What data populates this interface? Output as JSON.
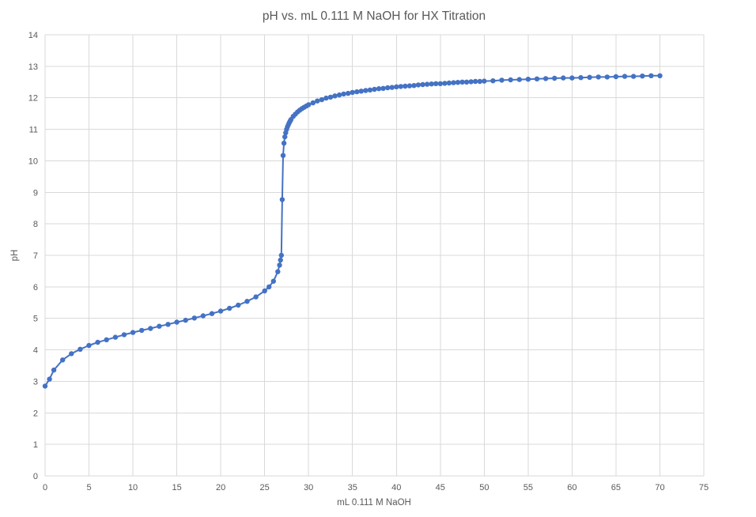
{
  "chart_data": {
    "type": "scatter",
    "title": "pH vs. mL 0.111 M NaOH for HX Titration",
    "xlabel": "mL 0.111 M NaOH",
    "ylabel": "pH",
    "xlim": [
      0,
      75
    ],
    "ylim": [
      0,
      14
    ],
    "x_ticks": [
      0,
      5,
      10,
      15,
      20,
      25,
      30,
      35,
      40,
      45,
      50,
      55,
      60,
      65,
      70,
      75
    ],
    "y_ticks": [
      0,
      1,
      2,
      3,
      4,
      5,
      6,
      7,
      8,
      9,
      10,
      11,
      12,
      13,
      14
    ],
    "grid": true,
    "legend": "none",
    "colors": {
      "series": "#4472C4",
      "gridline": "#D9D9D9",
      "text": "#595959",
      "background": "#FFFFFF"
    },
    "series": [
      {
        "name": "pH",
        "marker": "circle",
        "points": [
          [
            0,
            2.85
          ],
          [
            0.5,
            3.07
          ],
          [
            1,
            3.36
          ],
          [
            2,
            3.68
          ],
          [
            3,
            3.88
          ],
          [
            4,
            4.02
          ],
          [
            5,
            4.14
          ],
          [
            6,
            4.24
          ],
          [
            7,
            4.32
          ],
          [
            8,
            4.4
          ],
          [
            9,
            4.48
          ],
          [
            10,
            4.55
          ],
          [
            11,
            4.62
          ],
          [
            12,
            4.68
          ],
          [
            13,
            4.75
          ],
          [
            14,
            4.81
          ],
          [
            15,
            4.88
          ],
          [
            16,
            4.94
          ],
          [
            17,
            5.01
          ],
          [
            18,
            5.08
          ],
          [
            19,
            5.15
          ],
          [
            20,
            5.23
          ],
          [
            21,
            5.32
          ],
          [
            22,
            5.42
          ],
          [
            23,
            5.54
          ],
          [
            24,
            5.68
          ],
          [
            25,
            5.87
          ],
          [
            25.5,
            6.0
          ],
          [
            26,
            6.18
          ],
          [
            26.5,
            6.48
          ],
          [
            26.7,
            6.69
          ],
          [
            26.8,
            6.85
          ],
          [
            26.9,
            7.0
          ],
          [
            27,
            8.77
          ],
          [
            27.1,
            10.17
          ],
          [
            27.2,
            10.56
          ],
          [
            27.3,
            10.76
          ],
          [
            27.4,
            10.89
          ],
          [
            27.5,
            11.0
          ],
          [
            27.6,
            11.08
          ],
          [
            27.7,
            11.15
          ],
          [
            27.8,
            11.21
          ],
          [
            27.9,
            11.26
          ],
          [
            28,
            11.31
          ],
          [
            28.25,
            11.41
          ],
          [
            28.5,
            11.48
          ],
          [
            28.75,
            11.55
          ],
          [
            29,
            11.61
          ],
          [
            29.25,
            11.66
          ],
          [
            29.5,
            11.7
          ],
          [
            29.75,
            11.74
          ],
          [
            30,
            11.78
          ],
          [
            30.5,
            11.84
          ],
          [
            31,
            11.9
          ],
          [
            31.5,
            11.94
          ],
          [
            32,
            11.99
          ],
          [
            32.5,
            12.02
          ],
          [
            33,
            12.06
          ],
          [
            33.5,
            12.09
          ],
          [
            34,
            12.12
          ],
          [
            34.5,
            12.14
          ],
          [
            35,
            12.17
          ],
          [
            35.5,
            12.19
          ],
          [
            36,
            12.21
          ],
          [
            36.5,
            12.23
          ],
          [
            37,
            12.25
          ],
          [
            37.5,
            12.27
          ],
          [
            38,
            12.29
          ],
          [
            38.5,
            12.3
          ],
          [
            39,
            12.32
          ],
          [
            39.5,
            12.33
          ],
          [
            40,
            12.35
          ],
          [
            40.5,
            12.36
          ],
          [
            41,
            12.37
          ],
          [
            41.5,
            12.38
          ],
          [
            42,
            12.39
          ],
          [
            42.5,
            12.41
          ],
          [
            43,
            12.42
          ],
          [
            43.5,
            12.43
          ],
          [
            44,
            12.44
          ],
          [
            44.5,
            12.45
          ],
          [
            45,
            12.45
          ],
          [
            45.5,
            12.46
          ],
          [
            46,
            12.47
          ],
          [
            46.5,
            12.48
          ],
          [
            47,
            12.49
          ],
          [
            47.5,
            12.5
          ],
          [
            48,
            12.5
          ],
          [
            48.5,
            12.51
          ],
          [
            49,
            12.52
          ],
          [
            49.5,
            12.52
          ],
          [
            50,
            12.53
          ],
          [
            51,
            12.54
          ],
          [
            52,
            12.56
          ],
          [
            53,
            12.57
          ],
          [
            54,
            12.58
          ],
          [
            55,
            12.59
          ],
          [
            56,
            12.6
          ],
          [
            57,
            12.61
          ],
          [
            58,
            12.62
          ],
          [
            59,
            12.63
          ],
          [
            60,
            12.63
          ],
          [
            61,
            12.64
          ],
          [
            62,
            12.65
          ],
          [
            63,
            12.66
          ],
          [
            64,
            12.66
          ],
          [
            65,
            12.67
          ],
          [
            66,
            12.68
          ],
          [
            67,
            12.68
          ],
          [
            68,
            12.69
          ],
          [
            69,
            12.7
          ],
          [
            70,
            12.7
          ]
        ]
      }
    ]
  }
}
